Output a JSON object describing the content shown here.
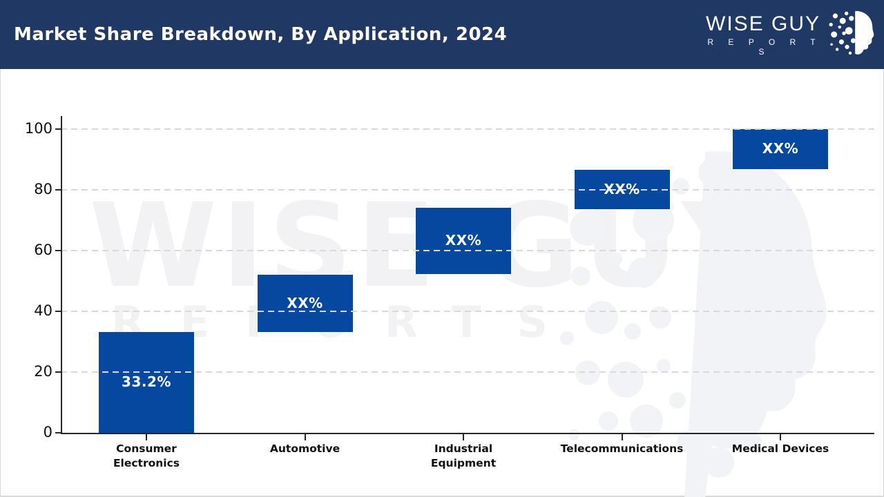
{
  "header": {
    "title": "Market Share Breakdown, By Application, 2024",
    "logo": {
      "line1": "WISE GUY",
      "line2": "R E P O R T S"
    }
  },
  "watermark": {
    "line1": "WISE GUY",
    "line2": "REPORTS"
  },
  "colors": {
    "header_bg": "#1f3864",
    "bar": "#05489f",
    "gridline": "#d9d9d9",
    "axis": "#262626",
    "bar_label": "#ffffff",
    "watermark": "#f2f2f4"
  },
  "chart_data": {
    "type": "bar",
    "subtype": "waterfall",
    "title": "Market Share Breakdown, By Application, 2024",
    "categories": [
      "Consumer Electronics",
      "Automotive",
      "Industrial Equipment",
      "Telecommunications",
      "Medical Devices"
    ],
    "category_lines": [
      [
        "Consumer",
        "Electronics"
      ],
      [
        "Automotive"
      ],
      [
        "Industrial",
        "Equipment"
      ],
      [
        "Telecommunications"
      ],
      [
        "Medical Devices"
      ]
    ],
    "segments": [
      {
        "category": "Consumer Electronics",
        "start": 0,
        "end": 33.2,
        "label": "33.2%"
      },
      {
        "category": "Automotive",
        "start": 33.2,
        "end": 52.0,
        "label": "XX%"
      },
      {
        "category": "Industrial Equipment",
        "start": 52.3,
        "end": 74.1,
        "label": "XX%"
      },
      {
        "category": "Telecommunications",
        "start": 73.6,
        "end": 86.6,
        "label": "XX%"
      },
      {
        "category": "Medical Devices",
        "start": 86.8,
        "end": 100.0,
        "label": "XX%"
      }
    ],
    "xlabel": "",
    "ylabel": "",
    "ylim": [
      0,
      100
    ],
    "yticks": [
      0,
      20,
      40,
      60,
      80,
      100
    ],
    "grid": "horizontal-dashed",
    "legend": null
  }
}
